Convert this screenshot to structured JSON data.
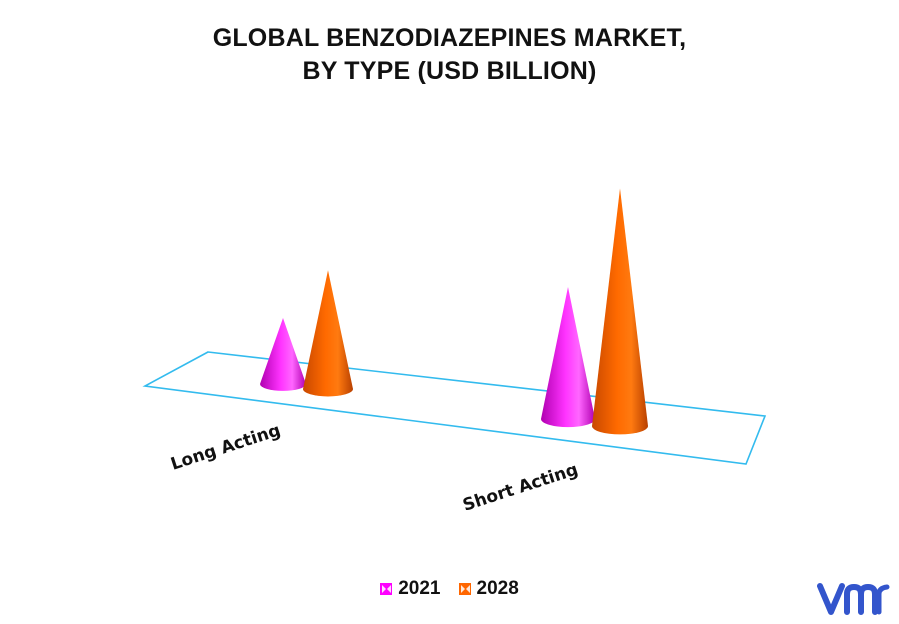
{
  "title_line1": "GLOBAL BENZODIAZEPINES MARKET,",
  "title_line2": "BY TYPE (USD BILLION)",
  "chart_data": {
    "type": "bar",
    "style": "3d-cone",
    "title": "GLOBAL BENZODIAZEPINES MARKET, BY TYPE (USD BILLION)",
    "categories": [
      "Long Acting",
      "Short Acting"
    ],
    "series": [
      {
        "name": "2021",
        "color": "#ff00ff",
        "values": [
          1.0,
          2.0
        ]
      },
      {
        "name": "2028",
        "color": "#ff6600",
        "values": [
          1.8,
          3.6
        ]
      }
    ],
    "xlabel": "",
    "ylabel": "",
    "legend_position": "bottom",
    "grid": false
  },
  "legend": [
    {
      "label": "2021",
      "color": "#ff00ff"
    },
    {
      "label": "2028",
      "color": "#ff6600"
    }
  ],
  "colors": {
    "floor_outline": "#33bbee",
    "logo": "#3355cc"
  },
  "logo_icon": "vmr-logo"
}
